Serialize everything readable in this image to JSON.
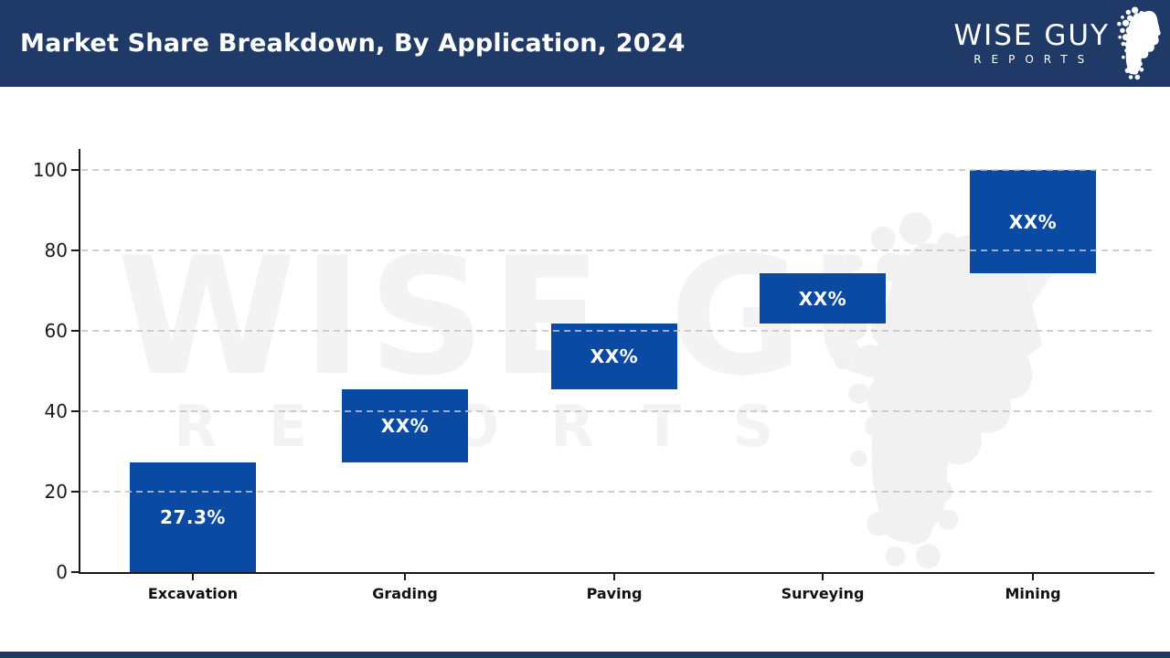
{
  "header": {
    "title": "Market Share Breakdown, By Application, 2024",
    "bg_color": "#203a68",
    "logo": {
      "name": "WISE GUY",
      "tagline": "REPORTS"
    }
  },
  "watermark": {
    "line1": "WISE GUY",
    "line2": "REPORTS"
  },
  "footer": {
    "bg_color": "#203a68"
  },
  "chart_data": {
    "type": "bar",
    "subtype": "waterfall",
    "title": "Market Share Breakdown, By Application, 2024",
    "categories": [
      "Excavation",
      "Grading",
      "Paving",
      "Surveying",
      "Mining"
    ],
    "segments": [
      {
        "category": "Excavation",
        "start": 0,
        "end": 27.3,
        "value": 27.3,
        "label": "27.3%"
      },
      {
        "category": "Grading",
        "start": 27.3,
        "end": 45.5,
        "value": 18.2,
        "label": "XX%"
      },
      {
        "category": "Paving",
        "start": 45.5,
        "end": 61.8,
        "value": 16.3,
        "label": "XX%"
      },
      {
        "category": "Surveying",
        "start": 61.8,
        "end": 74.3,
        "value": 12.5,
        "label": "XX%"
      },
      {
        "category": "Mining",
        "start": 74.3,
        "end": 100,
        "value": 25.7,
        "label": "XX%"
      }
    ],
    "xlabel": "",
    "ylabel": "",
    "ylim": [
      0,
      100
    ],
    "yticks": [
      0,
      20,
      40,
      60,
      80,
      100
    ],
    "grid": "horizontal-dashed",
    "legend": "none",
    "bar_color": "#0b4aa2",
    "bar_label_color": "#ffffff",
    "axis_color": "#1a1a1a"
  }
}
